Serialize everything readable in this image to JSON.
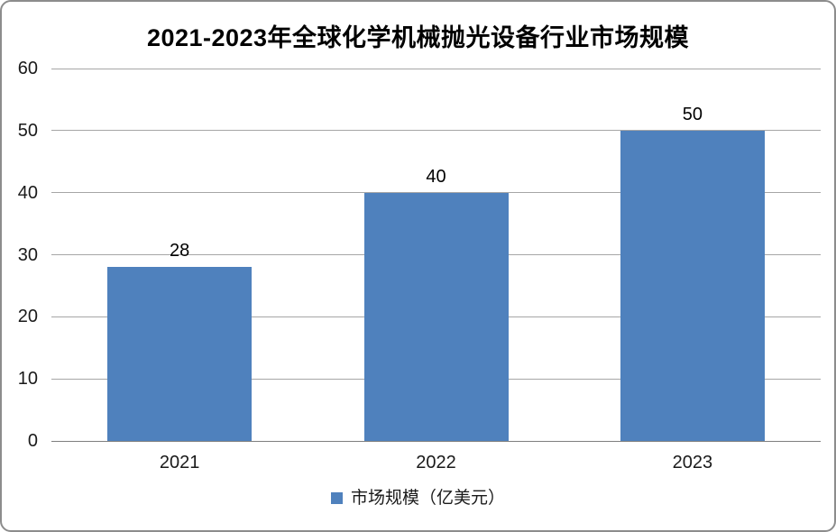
{
  "chart_data": {
    "type": "bar",
    "title": "2021-2023年全球化学机械抛光设备行业市场规模",
    "categories": [
      "2021",
      "2022",
      "2023"
    ],
    "series": [
      {
        "name": "市场规模（亿美元）",
        "values": [
          28,
          40,
          50
        ]
      }
    ],
    "data_labels": [
      "28",
      "40",
      "50"
    ],
    "xlabel": "",
    "ylabel": "",
    "ylim": [
      0,
      60
    ],
    "yticks": [
      0,
      10,
      20,
      30,
      40,
      50,
      60
    ],
    "grid": true,
    "legend_position": "bottom",
    "colors": {
      "bar": "#4f81bd",
      "gridline": "#a6a6a6",
      "axis_line": "#7f7f7f",
      "frame_border": "#8c8c8c",
      "text": "#000000"
    }
  }
}
